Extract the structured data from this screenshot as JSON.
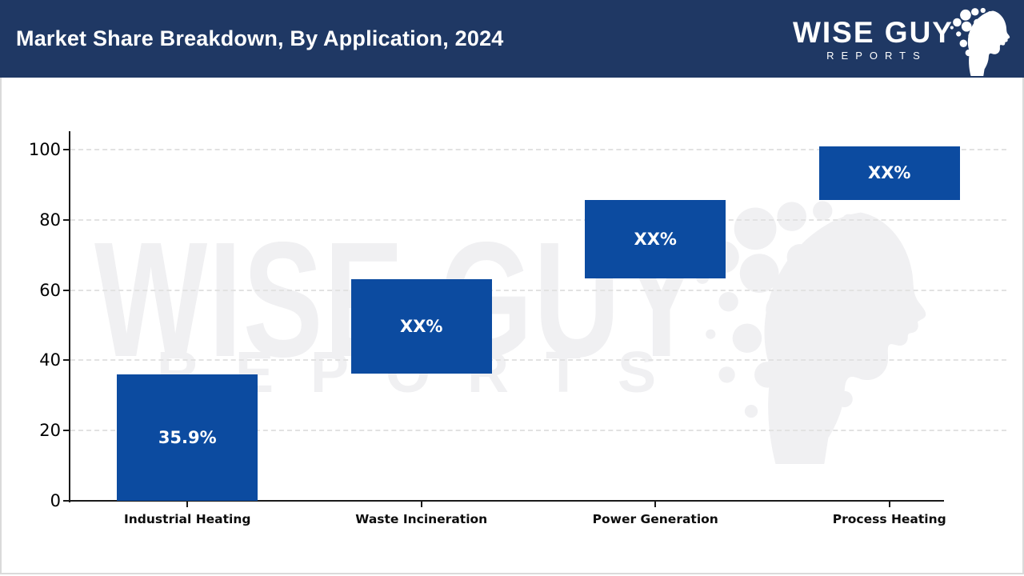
{
  "header": {
    "title": "Market Share Breakdown, By Application, 2024",
    "logo": {
      "line1": "WISE GUY",
      "line2": "REPORTS"
    }
  },
  "watermark": {
    "line1": "WISE GUY",
    "line2": "REPORTS"
  },
  "chart_data": {
    "type": "bar",
    "variant": "floating-segment-breakdown",
    "title": "Market Share Breakdown, By Application, 2024",
    "categories": [
      "Industrial Heating",
      "Waste Incineration",
      "Power Generation",
      "Process Heating"
    ],
    "series": [
      {
        "category": "Industrial Heating",
        "start": 0,
        "end": 35.9,
        "label": "35.9%"
      },
      {
        "category": "Waste Incineration",
        "start": 36.2,
        "end": 63.1,
        "label": "XX%"
      },
      {
        "category": "Power Generation",
        "start": 63.4,
        "end": 85.7,
        "label": "XX%"
      },
      {
        "category": "Process Heating",
        "start": 85.7,
        "end": 101,
        "label": "XX%"
      }
    ],
    "yticks": [
      0,
      20,
      40,
      60,
      80,
      100
    ],
    "ylim": [
      0,
      100
    ],
    "xlabel": "",
    "ylabel": "",
    "grid": "dashed-horizontal",
    "legend": "none",
    "bar_color": "#0c4ba0",
    "bar_label_color": "#ffffff"
  },
  "colors": {
    "header_bg": "#1f3864",
    "header_text": "#ffffff",
    "axis": "#1a1a1a",
    "grid": "#e2e2e2",
    "watermark": "#f0f0f2",
    "frame_border": "#dadada"
  }
}
